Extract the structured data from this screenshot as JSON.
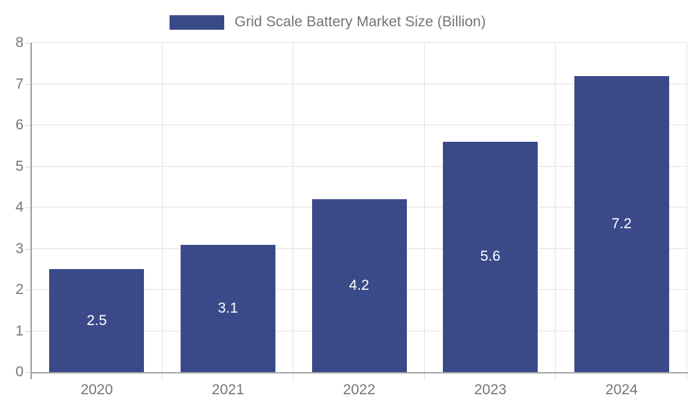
{
  "legend": {
    "label": "Grid Scale Battery Market Size (Billion)"
  },
  "colors": {
    "bar": "#3A4A89",
    "gridline": "#e2e2e2",
    "axis": "#a6a6a6",
    "tick_text": "#757575",
    "value_text": "#ffffff",
    "background": "#ffffff"
  },
  "chart_data": {
    "type": "bar",
    "title": "Grid Scale Battery Market Size (Billion)",
    "series_name": "Grid Scale Battery Market Size (Billion)",
    "categories": [
      "2020",
      "2021",
      "2022",
      "2023",
      "2024"
    ],
    "values": [
      2.5,
      3.1,
      4.2,
      5.6,
      7.2
    ],
    "xlabel": "",
    "ylabel": "",
    "ylim": [
      0,
      8
    ],
    "yticks": [
      0,
      1,
      2,
      3,
      4,
      5,
      6,
      7,
      8
    ],
    "grid": true,
    "legend_position": "top-center",
    "value_labels": "inside-center"
  }
}
